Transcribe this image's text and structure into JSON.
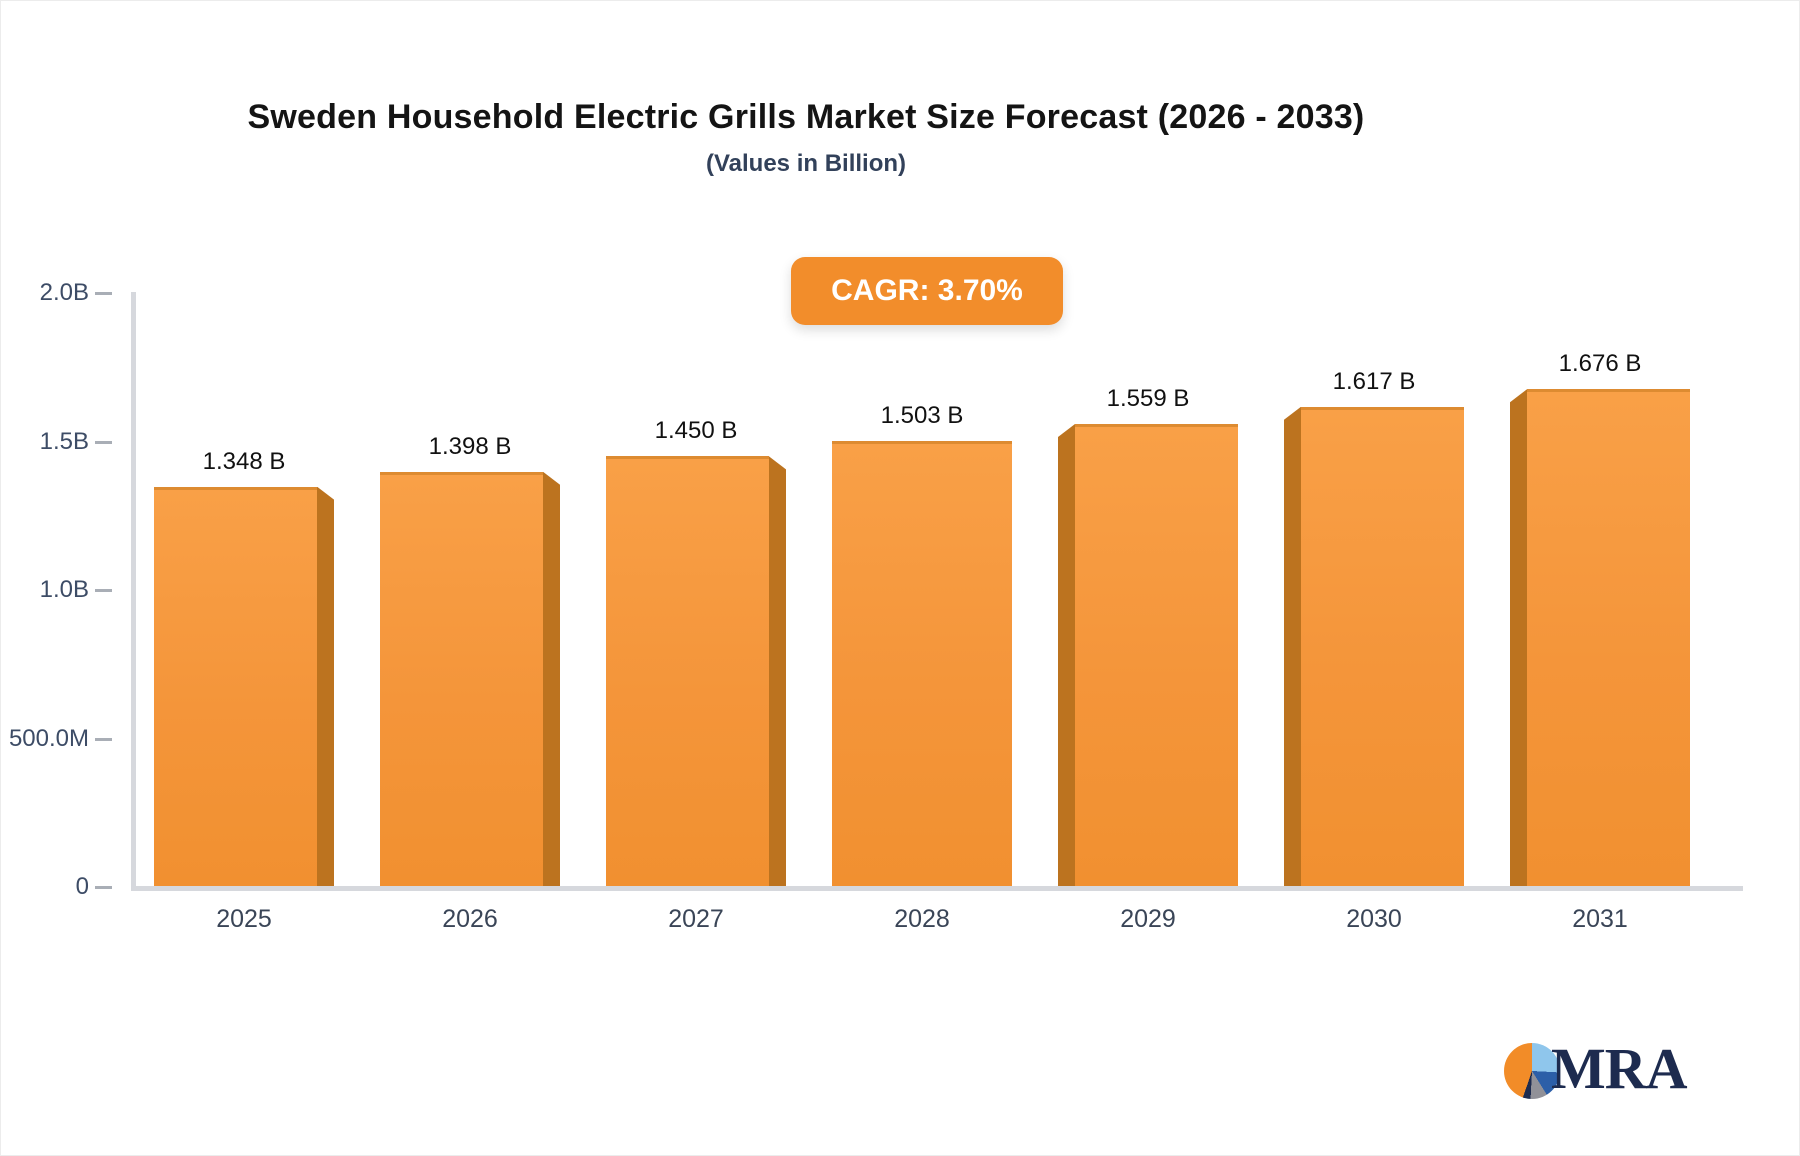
{
  "page": {
    "title": "Sweden Household Electric Grills Market Size Forecast (2026 - 2033)",
    "subtitle": "(Values in Billion)"
  },
  "badge": {
    "label": "CAGR: 3.70%",
    "bg": "#F28D2B"
  },
  "chart_data": {
    "type": "bar",
    "title": "Sweden Household Electric Grills Market Size Forecast (2026 - 2033)",
    "subtitle": "(Values in Billion)",
    "xlabel": "",
    "ylabel": "",
    "unit": "Billion",
    "categories": [
      "2025",
      "2026",
      "2027",
      "2028",
      "2029",
      "2030",
      "2031"
    ],
    "values": [
      1.348,
      1.398,
      1.45,
      1.503,
      1.559,
      1.617,
      1.676
    ],
    "value_labels": [
      "1.348 B",
      "1.398 B",
      "1.450 B",
      "1.503 B",
      "1.559 B",
      "1.617 B",
      "1.676 B"
    ],
    "ylim": [
      0,
      2.0
    ],
    "yticks": [
      {
        "value": 2.0,
        "label": "2.0B"
      },
      {
        "value": 1.5,
        "label": "1.5B"
      },
      {
        "value": 1.0,
        "label": "1.0B"
      },
      {
        "value": 0.5,
        "label": "500.0M"
      },
      {
        "value": 0,
        "label": "0"
      }
    ],
    "grid": false,
    "legend": false,
    "colors": {
      "bar_face_top": "#F9A047",
      "bar_face_bottom": "#F19030",
      "bar_side": "#BC731F",
      "axis": "#D6D8DD"
    }
  },
  "logo": {
    "text": "MRA"
  }
}
